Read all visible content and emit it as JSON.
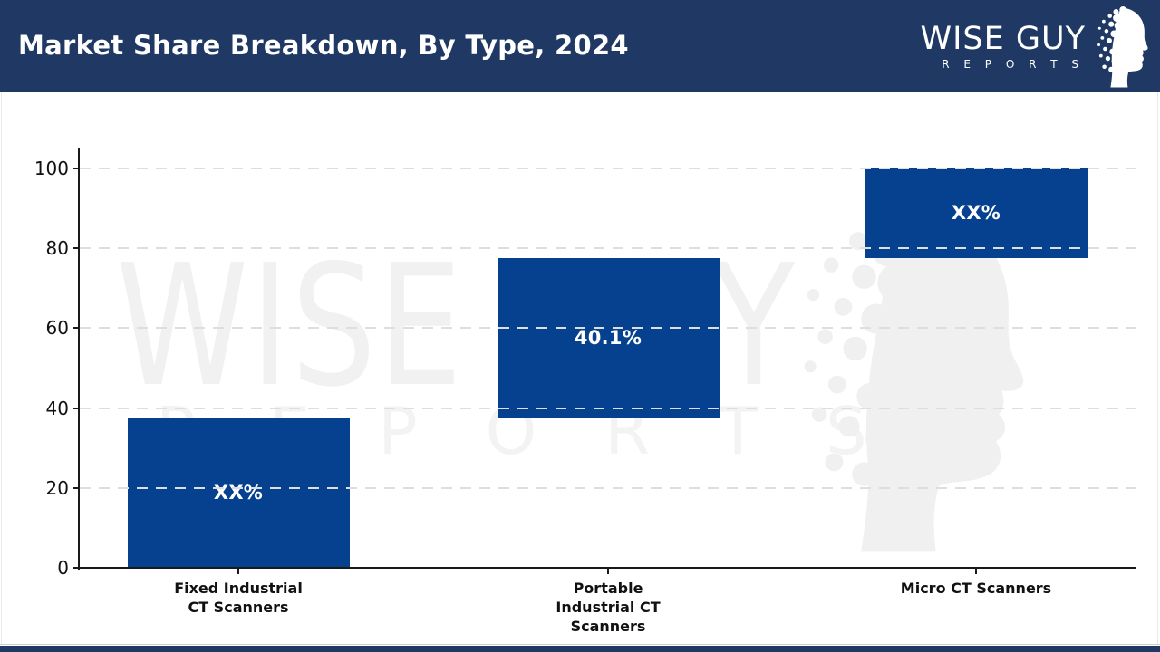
{
  "header": {
    "title": "Market Share Breakdown, By Type, 2024",
    "logo": {
      "line1": "WISE GUY",
      "line2": "R E P O R T S"
    }
  },
  "watermark": {
    "line1": "WISE GUY",
    "line2": "R E P O R T S"
  },
  "footer": {},
  "chart_data": {
    "type": "bar",
    "subtype": "waterfall",
    "title": "Market Share Breakdown, By Type, 2024",
    "categories": [
      "Fixed Industrial\nCT Scanners",
      "Portable\nIndustrial CT\nScanners",
      "Micro CT Scanners"
    ],
    "segments": [
      {
        "category": "Fixed Industrial CT Scanners",
        "start": 0,
        "end": 37.5,
        "value": 37.5,
        "label": "XX%"
      },
      {
        "category": "Portable Industrial CT Scanners",
        "start": 37.5,
        "end": 77.6,
        "value": 40.1,
        "label": "40.1%"
      },
      {
        "category": "Micro CT Scanners",
        "start": 77.6,
        "end": 100,
        "value": 22.4,
        "label": "XX%"
      }
    ],
    "yticks": [
      0,
      20,
      40,
      60,
      80,
      100
    ],
    "ylim": [
      0,
      105
    ],
    "xlabel": "",
    "ylabel": "",
    "grid": true,
    "legend": false,
    "bar_color": "#05418F",
    "gridline_color": "#dedede",
    "axis_color": "#1a1a1a",
    "value_label_color": "#ffffff"
  },
  "colors": {
    "header_bg": "#1F3864",
    "footer_bg": "#1F3864",
    "watermark": "#f1f1f1",
    "background": "#ffffff"
  }
}
